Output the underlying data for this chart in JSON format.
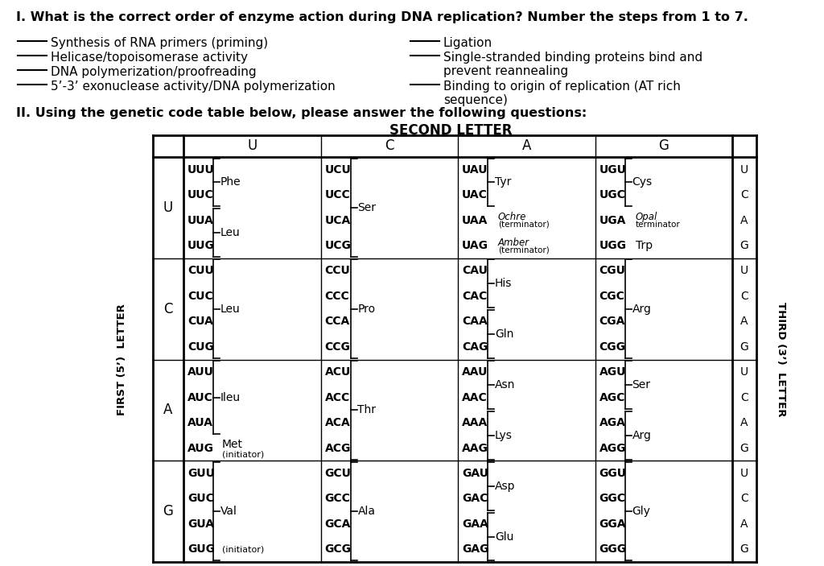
{
  "title_I": "I. What is the correct order of enzyme action during DNA replication? Number the steps from 1 to 7.",
  "left_items": [
    "Synthesis of RNA primers (priming)",
    "Helicase/topoisomerase activity",
    "DNA polymerization/proofreading",
    "5’-3’ exonuclease activity/DNA polymerization"
  ],
  "right_items": [
    "Ligation",
    "Single-stranded binding proteins bind and\nprevent reannealing",
    "Binding to origin of replication (AT rich\nsequence)"
  ],
  "title_II": "II. Using the genetic code table below, please answer the following questions:",
  "second_letter_title": "SECOND LETTER",
  "first_letter_label": "FIRST (5’)  LETTER",
  "third_letter_label": "THIRD (3’)  LETTER",
  "col_headers": [
    "U",
    "C",
    "A",
    "G"
  ],
  "row_headers": [
    "U",
    "C",
    "A",
    "G"
  ],
  "bg_color": "#ffffff",
  "text_color": "#000000"
}
